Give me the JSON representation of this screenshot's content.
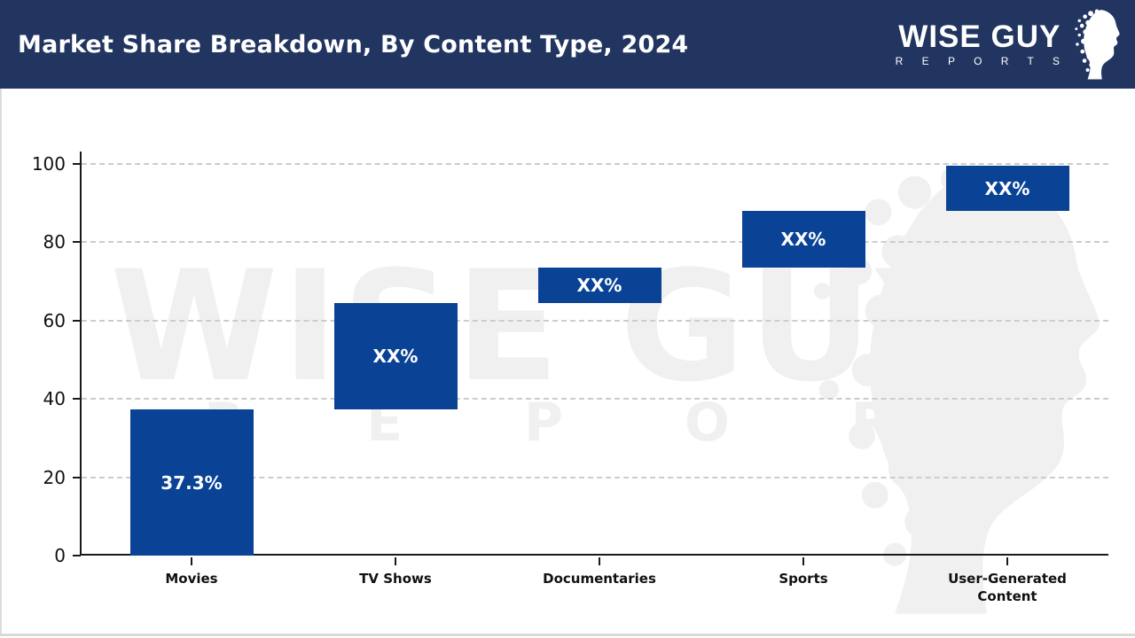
{
  "header": {
    "title": "Market Share Breakdown, By Content Type, 2024",
    "bg_color": "#213560",
    "logo": {
      "line1": "WISE GUY",
      "line2": "R E P O R T S"
    }
  },
  "watermark": {
    "line1": "WISE GUY",
    "line2": "R E P O R T S"
  },
  "chart_data": {
    "type": "bar",
    "subtype": "waterfall",
    "title": "Market Share Breakdown, By Content Type, 2024",
    "xlabel": "",
    "ylabel": "",
    "categories": [
      "Movies",
      "TV Shows",
      "Documentaries",
      "Sports",
      "User-Generated Content"
    ],
    "segments": [
      {
        "category": "Movies",
        "start": 0,
        "end": 37.3,
        "label": "37.3%"
      },
      {
        "category": "TV Shows",
        "start": 37.3,
        "end": 64.5,
        "label": "XX%"
      },
      {
        "category": "Documentaries",
        "start": 64.5,
        "end": 73.5,
        "label": "XX%"
      },
      {
        "category": "Sports",
        "start": 73.5,
        "end": 88.0,
        "label": "XX%"
      },
      {
        "category": "User-Generated Content",
        "start": 88.0,
        "end": 99.5,
        "label": "XX%"
      }
    ],
    "yticks": [
      0,
      20,
      40,
      60,
      80,
      100
    ],
    "ylim": [
      0,
      103
    ],
    "grid": "horizontal-dashed",
    "legend": "none",
    "colors": {
      "bar": "#0a4396",
      "grid": "#cccccc",
      "axis": "#1a1a1a",
      "tick_text": "#111111",
      "bar_label_text": "#ffffff",
      "watermark": "#f0f0f1"
    }
  }
}
